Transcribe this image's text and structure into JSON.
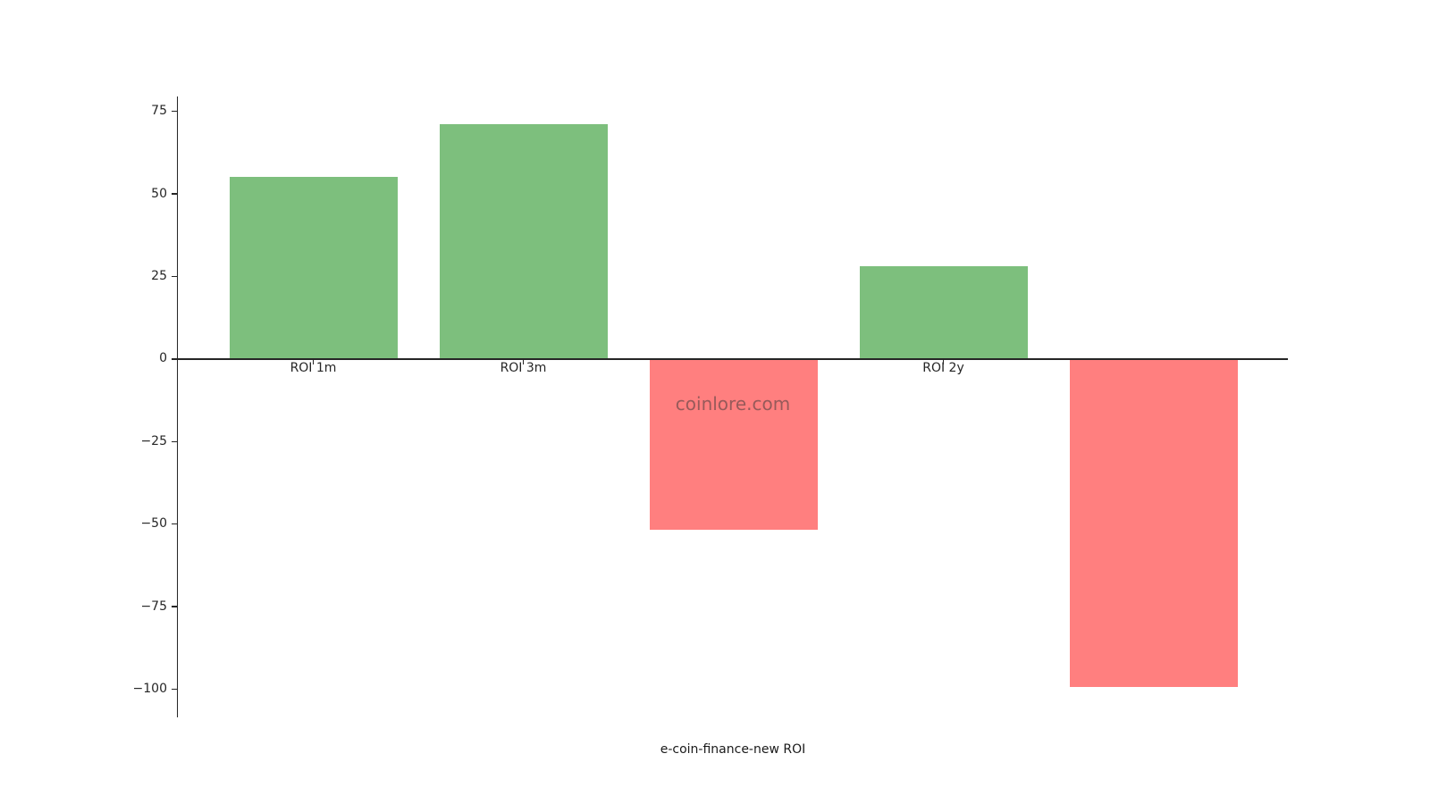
{
  "figure": {
    "background": "#ffffff"
  },
  "colors": {
    "positive_bar": "#7dbf7d",
    "negative_bar": "#ff7f7f",
    "axis": "#262626",
    "tick_text": "#262626",
    "title_text": "#1a1a1a",
    "watermark_text": "rgba(55,55,55,0.52)"
  },
  "chart_data": {
    "type": "bar",
    "title": "",
    "xlabel": "e-coin-finance-new ROI",
    "ylabel": "",
    "categories": [
      "ROI 1m",
      "ROI 3m",
      "",
      "ROI 2y",
      ""
    ],
    "values": [
      55.1,
      71,
      -51.8,
      28.1,
      -99.4
    ],
    "bar_colors": [
      "#7dbf7d",
      "#7dbf7d",
      "#ff7f7f",
      "#7dbf7d",
      "#ff7f7f"
    ],
    "y_ticks": [
      75,
      50,
      25,
      0,
      -25,
      -50,
      -75,
      -100
    ],
    "y_tick_labels": [
      "75",
      "50",
      "25",
      "0",
      "−25",
      "−50",
      "−75",
      "−100"
    ],
    "ylim": [
      -108.5,
      79.5
    ],
    "grid": false,
    "legend_position": "none",
    "watermark": "coinlore.com"
  }
}
